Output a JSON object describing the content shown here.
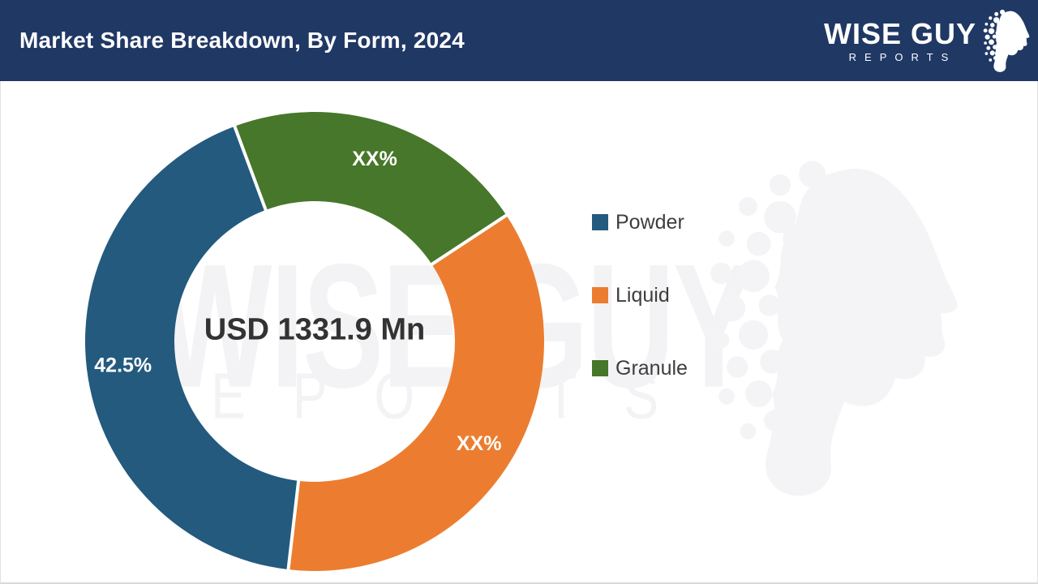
{
  "header": {
    "title": "Market Share Breakdown, By Form, 2024",
    "logo": {
      "name": "WISE GUY",
      "tagline": "REPORTS"
    }
  },
  "watermark": {
    "line1": "WISE GUY",
    "line2": "REPORTS"
  },
  "icons": {
    "logo_face": "dot-face-profile-icon"
  },
  "chart_data": {
    "type": "pie",
    "subtype": "donut",
    "title": "Market Share Breakdown, By Form, 2024",
    "center_label": "USD 1331.9 Mn",
    "categories": [
      "Powder",
      "Liquid",
      "Granule"
    ],
    "values": [
      42.5,
      36.1,
      21.4
    ],
    "labels": [
      "42.5%",
      "XX%",
      "XX%"
    ],
    "colors": [
      "#235A7E",
      "#EC7D30",
      "#47772A"
    ],
    "legend_position": "right",
    "donut_hole_ratio": 0.61,
    "start_angle_deg": 110.4,
    "direction": "ccw"
  },
  "styles": {
    "header_bg": "#203864",
    "title_color": "#FFFFFF",
    "slice_label_color": "#FFFFFF",
    "center_label_color": "#333333",
    "legend_text_color": "#3E3E3E",
    "watermark_color": "#F3F3F5",
    "border_color": "#D9D9D9"
  }
}
